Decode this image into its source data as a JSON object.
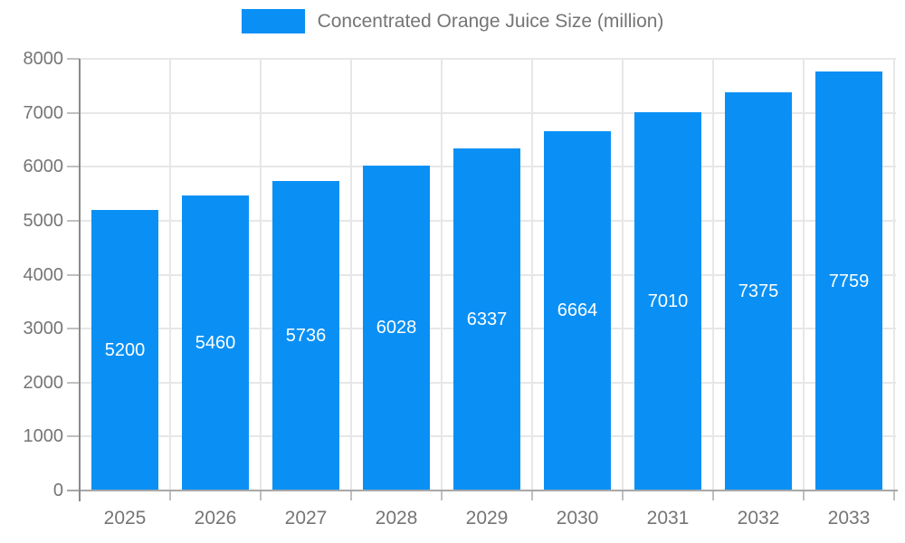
{
  "legend": {
    "label": "Concentrated Orange Juice Size (million)"
  },
  "colors": {
    "bar": "#0a90f5",
    "grid": "#e7e7e7",
    "axis_y": "#8a8a8a",
    "axis_x": "#a8a8a8",
    "tick": "#c0c0c0",
    "text": "#757575",
    "bar_label": "#ffffff",
    "background": "#ffffff"
  },
  "chart_data": {
    "type": "bar",
    "title": "Concentrated Orange Juice Size (million)",
    "categories": [
      "2025",
      "2026",
      "2027",
      "2028",
      "2029",
      "2030",
      "2031",
      "2032",
      "2033"
    ],
    "values": [
      5200,
      5460,
      5736,
      6028,
      6337,
      6664,
      7010,
      7375,
      7759
    ],
    "xlabel": "",
    "ylabel": "",
    "ylim": [
      0,
      8000
    ],
    "ytick_step": 1000,
    "ytick_labels": [
      "0",
      "1000",
      "2000",
      "3000",
      "4000",
      "5000",
      "6000",
      "7000",
      "8000"
    ],
    "grid": true,
    "legend_position": "top",
    "bar_labels_inside": true
  }
}
